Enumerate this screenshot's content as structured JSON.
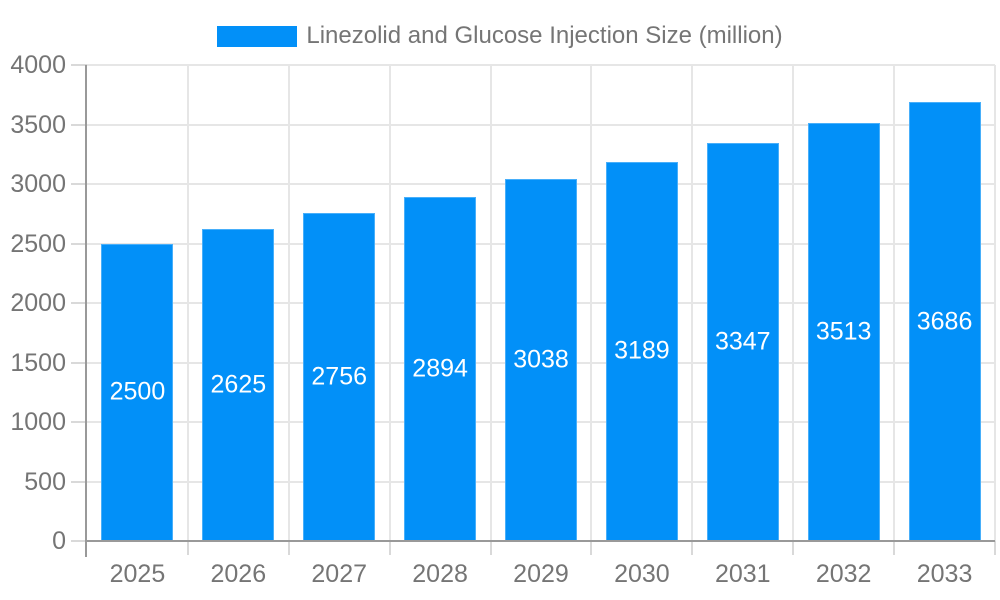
{
  "chart_data": {
    "type": "bar",
    "title": "Linezolid and Glucose Injection Size (million)",
    "legend_position": "top",
    "categories": [
      "2025",
      "2026",
      "2027",
      "2028",
      "2029",
      "2030",
      "2031",
      "2032",
      "2033"
    ],
    "series": [
      {
        "name": "Linezolid and Glucose Injection Size (million)",
        "values": [
          2500,
          2625,
          2756,
          2894,
          3038,
          3189,
          3347,
          3513,
          3686
        ]
      }
    ],
    "bar_labels": [
      "2500",
      "2625",
      "2756",
      "2894",
      "3038",
      "3189",
      "3347",
      "3513",
      "3686"
    ],
    "xlabel": "",
    "ylabel": "",
    "ylim": [
      0,
      4000
    ],
    "yticks": [
      0,
      500,
      1000,
      1500,
      2000,
      2500,
      3000,
      3500,
      4000
    ],
    "grid": true,
    "colors": {
      "bar": "#0290f8",
      "bar_label": "#ffffff",
      "axis_text": "#757575",
      "grid_line": "#e6e6e6",
      "axis_line": "#999999",
      "tick_line": "#d9d9d9",
      "background": "#ffffff"
    }
  }
}
